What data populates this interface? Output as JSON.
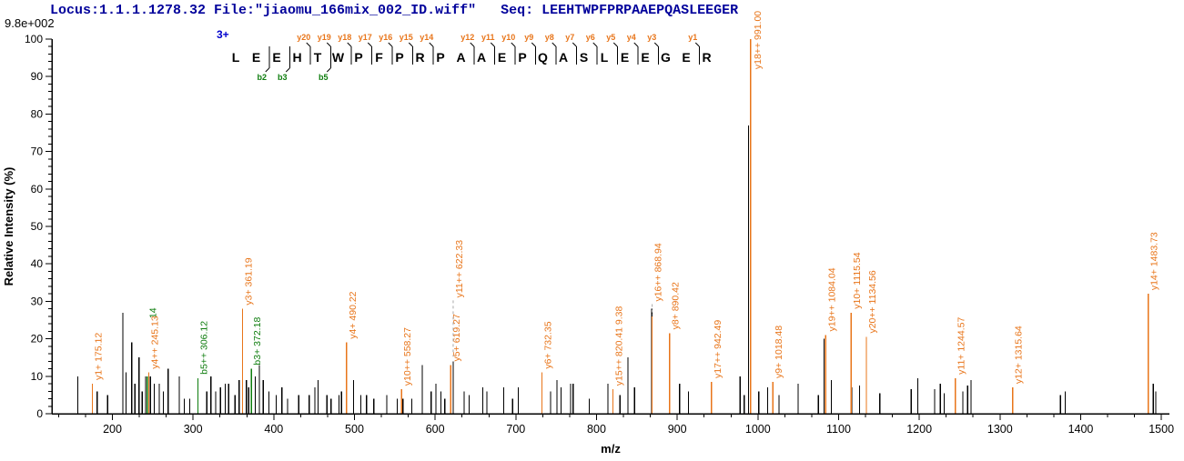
{
  "header": {
    "title": "Locus:1.1.1.1278.32 File:\"jiaomu_166mix_002_ID.wiff\"   Seq: LEEHTWPFPRPAAEPQASLEEGER",
    "base_peak_intensity": "9.8e+002"
  },
  "colors": {
    "y_ion": "#e8751a",
    "b_ion": "#0e7d0e",
    "title": "#00009b",
    "charge": "#0000cd",
    "peak": "#000000",
    "dashed": "#a8a8a8",
    "axis": "#000000"
  },
  "sequence_annotation": {
    "charge_label": "3+",
    "residues": [
      "L",
      "E",
      "E",
      "H",
      "T",
      "W",
      "P",
      "F",
      "P",
      "R",
      "P",
      "A",
      "A",
      "E",
      "P",
      "Q",
      "A",
      "S",
      "L",
      "E",
      "E",
      "G",
      "E",
      "R"
    ],
    "y_ions": [
      {
        "label": "y20",
        "gap": 4
      },
      {
        "label": "y19",
        "gap": 5
      },
      {
        "label": "y18",
        "gap": 6
      },
      {
        "label": "y17",
        "gap": 7
      },
      {
        "label": "y16",
        "gap": 8
      },
      {
        "label": "y15",
        "gap": 9
      },
      {
        "label": "y14",
        "gap": 10
      },
      {
        "label": "y12",
        "gap": 12
      },
      {
        "label": "y11",
        "gap": 13
      },
      {
        "label": "y10",
        "gap": 14
      },
      {
        "label": "y9",
        "gap": 15
      },
      {
        "label": "y8",
        "gap": 16
      },
      {
        "label": "y7",
        "gap": 17
      },
      {
        "label": "y6",
        "gap": 18
      },
      {
        "label": "y5",
        "gap": 19
      },
      {
        "label": "y4",
        "gap": 20
      },
      {
        "label": "y3",
        "gap": 21
      },
      {
        "label": "y1",
        "gap": 23
      }
    ],
    "b_ions": [
      {
        "label": "b2",
        "gap": 2
      },
      {
        "label": "b3",
        "gap": 3
      },
      {
        "label": "b5",
        "gap": 5
      }
    ]
  },
  "chart_data": {
    "type": "bar",
    "subtype": "ms2-fragmentation-stick-spectrum",
    "title": "",
    "xlabel": "m/z",
    "ylabel": "Relative  Intensity (%)",
    "xlim": [
      125,
      1510
    ],
    "ylim": [
      0,
      100
    ],
    "x_major_ticks": [
      200,
      300,
      400,
      500,
      600,
      700,
      800,
      900,
      1000,
      1100,
      1200,
      1300,
      1400,
      1500
    ],
    "x_minor_start": 133.333,
    "x_minor_step": 33.3333,
    "y_major_ticks": [
      0,
      10,
      20,
      30,
      40,
      50,
      60,
      70,
      80,
      90,
      100
    ],
    "y_minor_step": 2,
    "grid": false,
    "labeled_peaks": [
      {
        "label": "y1+ 175.12",
        "mz": 175.12,
        "intensity": 8,
        "ion_type": "y"
      },
      {
        "label": "14",
        "mz": 243.14,
        "intensity": 10,
        "ion_type": "b",
        "label_height": 24.5
      },
      {
        "label": "y4++ 245.13",
        "mz": 245.13,
        "intensity": 11,
        "ion_type": "y"
      },
      {
        "label": "b5++ 306.12",
        "mz": 306.12,
        "intensity": 9.5,
        "ion_type": "b"
      },
      {
        "label": "y3+ 361.19",
        "mz": 361.19,
        "intensity": 28,
        "ion_type": "y"
      },
      {
        "label": "b3+ 372.18",
        "mz": 372.18,
        "intensity": 12,
        "ion_type": "b"
      },
      {
        "label": "y4+ 490.22",
        "mz": 490.22,
        "intensity": 19,
        "ion_type": "y"
      },
      {
        "label": "y10++ 558.27",
        "mz": 558.27,
        "intensity": 6.5,
        "ion_type": "y"
      },
      {
        "label": "y5+ 619.27",
        "mz": 619.27,
        "intensity": 13,
        "ion_type": "y"
      },
      {
        "label": "y11++ 622.33",
        "mz": 622.33,
        "intensity": 0,
        "ion_type": "y",
        "no_line": true,
        "label_height": 30,
        "dashed": true,
        "connect_height": 15
      },
      {
        "label": "y6+ 732.35",
        "mz": 732.35,
        "intensity": 11,
        "ion_type": "y"
      },
      {
        "label": "y15++ 820.41 9.38",
        "mz": 820.41,
        "intensity": 6.5,
        "ion_type": "y"
      },
      {
        "label": "y16++ 868.94",
        "mz": 868.94,
        "intensity": 26,
        "ion_type": "y",
        "label_height": 29,
        "dashed": true,
        "connect_height": 26
      },
      {
        "label": "y8+ 890.42",
        "mz": 890.42,
        "intensity": 21.5,
        "ion_type": "y"
      },
      {
        "label": "y17++ 942.49",
        "mz": 942.49,
        "intensity": 8.5,
        "ion_type": "y"
      },
      {
        "label": "y18++ 991.00",
        "mz": 991.0,
        "intensity": 100,
        "ion_type": "y",
        "label_height": 91,
        "side": true
      },
      {
        "label": "y9+ 1018.48",
        "mz": 1018.48,
        "intensity": 8.5,
        "ion_type": "y"
      },
      {
        "label": "y19++ 1084.04",
        "mz": 1084.04,
        "intensity": 21,
        "ion_type": "y"
      },
      {
        "label": "y10+ 1115.54",
        "mz": 1115.54,
        "intensity": 27,
        "ion_type": "y"
      },
      {
        "label": "y20++ 1134.56",
        "mz": 1134.56,
        "intensity": 20.5,
        "ion_type": "y"
      },
      {
        "label": "y11+ 1244.57",
        "mz": 1244.57,
        "intensity": 9.5,
        "ion_type": "y"
      },
      {
        "label": "y12+ 1315.64",
        "mz": 1315.64,
        "intensity": 7,
        "ion_type": "y"
      },
      {
        "label": "y14+ 1483.73",
        "mz": 1483.73,
        "intensity": 32,
        "ion_type": "y"
      }
    ],
    "unlabeled_peaks": [
      [
        157,
        10
      ],
      [
        181,
        6
      ],
      [
        194,
        5
      ],
      [
        213,
        27
      ],
      [
        217,
        11
      ],
      [
        224,
        19
      ],
      [
        228,
        8
      ],
      [
        233,
        15
      ],
      [
        237,
        6
      ],
      [
        241,
        10
      ],
      [
        247,
        10
      ],
      [
        252,
        8
      ],
      [
        258,
        8
      ],
      [
        263,
        6
      ],
      [
        269,
        12
      ],
      [
        283,
        10
      ],
      [
        289,
        4
      ],
      [
        296,
        4
      ],
      [
        317,
        6
      ],
      [
        322,
        10
      ],
      [
        328,
        6
      ],
      [
        334,
        7
      ],
      [
        340,
        8
      ],
      [
        344,
        8
      ],
      [
        352,
        5
      ],
      [
        357,
        9
      ],
      [
        366,
        9
      ],
      [
        369,
        7
      ],
      [
        377,
        10
      ],
      [
        382,
        13
      ],
      [
        387,
        9
      ],
      [
        394,
        6
      ],
      [
        403,
        5
      ],
      [
        410,
        7
      ],
      [
        417,
        4
      ],
      [
        431,
        5
      ],
      [
        444,
        5
      ],
      [
        451,
        7
      ],
      [
        455,
        9
      ],
      [
        466,
        5
      ],
      [
        471,
        4
      ],
      [
        481,
        5
      ],
      [
        484,
        6
      ],
      [
        499,
        9
      ],
      [
        508,
        5
      ],
      [
        515,
        5
      ],
      [
        524,
        4
      ],
      [
        540,
        5
      ],
      [
        553,
        4
      ],
      [
        560,
        4
      ],
      [
        571,
        4
      ],
      [
        584,
        13
      ],
      [
        595,
        6
      ],
      [
        601,
        8
      ],
      [
        607,
        6
      ],
      [
        612,
        4
      ],
      [
        622.3,
        14
      ],
      [
        636,
        6
      ],
      [
        642,
        5
      ],
      [
        659,
        7
      ],
      [
        664,
        6
      ],
      [
        685,
        7
      ],
      [
        696,
        4
      ],
      [
        703,
        7
      ],
      [
        743,
        6
      ],
      [
        751,
        9
      ],
      [
        756,
        7
      ],
      [
        768,
        8
      ],
      [
        771,
        8
      ],
      [
        791,
        4
      ],
      [
        814,
        8
      ],
      [
        829,
        5
      ],
      [
        839,
        15
      ],
      [
        847,
        7
      ],
      [
        868.5,
        28
      ],
      [
        903,
        8
      ],
      [
        914,
        6
      ],
      [
        978,
        10
      ],
      [
        983,
        5
      ],
      [
        988.5,
        77
      ],
      [
        1001,
        6
      ],
      [
        1012,
        7
      ],
      [
        1026,
        5
      ],
      [
        1050,
        8
      ],
      [
        1075,
        5
      ],
      [
        1082,
        20
      ],
      [
        1091,
        9
      ],
      [
        1116.5,
        7
      ],
      [
        1126,
        7.5
      ],
      [
        1151,
        5.5
      ],
      [
        1190,
        6.5
      ],
      [
        1198,
        9.5
      ],
      [
        1219,
        6.5
      ],
      [
        1226,
        8
      ],
      [
        1231,
        5.5
      ],
      [
        1254,
        6
      ],
      [
        1260,
        7.5
      ],
      [
        1264,
        9
      ],
      [
        1375,
        5
      ],
      [
        1381,
        6
      ],
      [
        1490,
        8
      ],
      [
        1493,
        6
      ]
    ]
  }
}
